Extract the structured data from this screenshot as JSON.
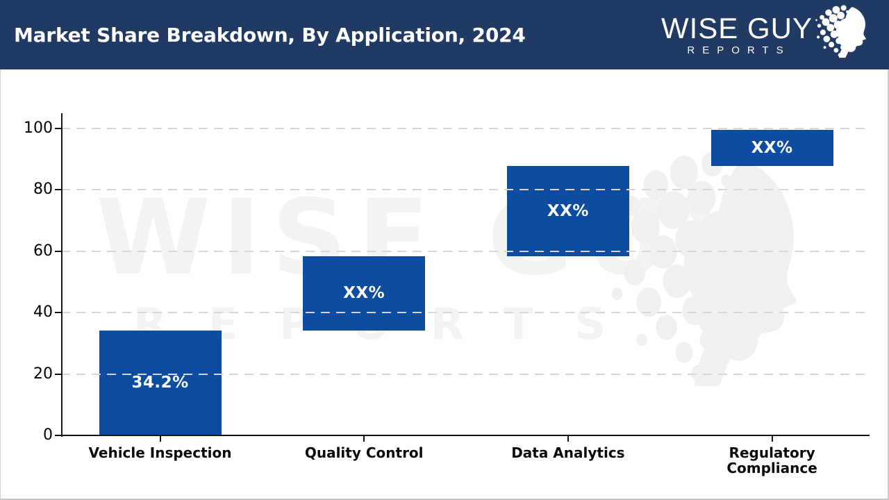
{
  "header": {
    "title": "Market Share Breakdown, By Application, 2024",
    "logo": {
      "line1": "WISE GUY",
      "line2": "REPORTS"
    }
  },
  "watermark": {
    "line1": "WISE GUY",
    "line2": "REPORTS"
  },
  "colors": {
    "header_bg": "#203a64",
    "bar": "#0c4da2",
    "bar_label": "#ffffff",
    "gridline": "#d6d6d6",
    "axis": "#141414",
    "watermark": "#f3f3f3",
    "edge_border": "#c6c6c6"
  },
  "chart_data": {
    "type": "bar",
    "variant": "floating-waterfall",
    "title": "Market Share Breakdown, By Application, 2024",
    "categories": [
      "Vehicle Inspection",
      "Quality Control",
      "Data Analytics",
      "Regulatory Compliance"
    ],
    "tick_labels": [
      "Vehicle Inspection",
      "Quality Control",
      "Data Analytics",
      "Regulatory\nCompliance"
    ],
    "series": [
      {
        "name": "Market Share",
        "segments": [
          {
            "from": 0,
            "to": 34.2,
            "label": "34.2%"
          },
          {
            "from": 34.2,
            "to": 58.4,
            "label": "XX%"
          },
          {
            "from": 58.4,
            "to": 87.8,
            "label": "XX%"
          },
          {
            "from": 87.8,
            "to": 99.5,
            "label": "XX%"
          }
        ]
      }
    ],
    "yticks": [
      0,
      20,
      40,
      60,
      80,
      100
    ],
    "ylim": [
      0,
      105
    ],
    "xlabel": "",
    "ylabel": "",
    "grid": "dashed-horizontal",
    "legend": false
  }
}
